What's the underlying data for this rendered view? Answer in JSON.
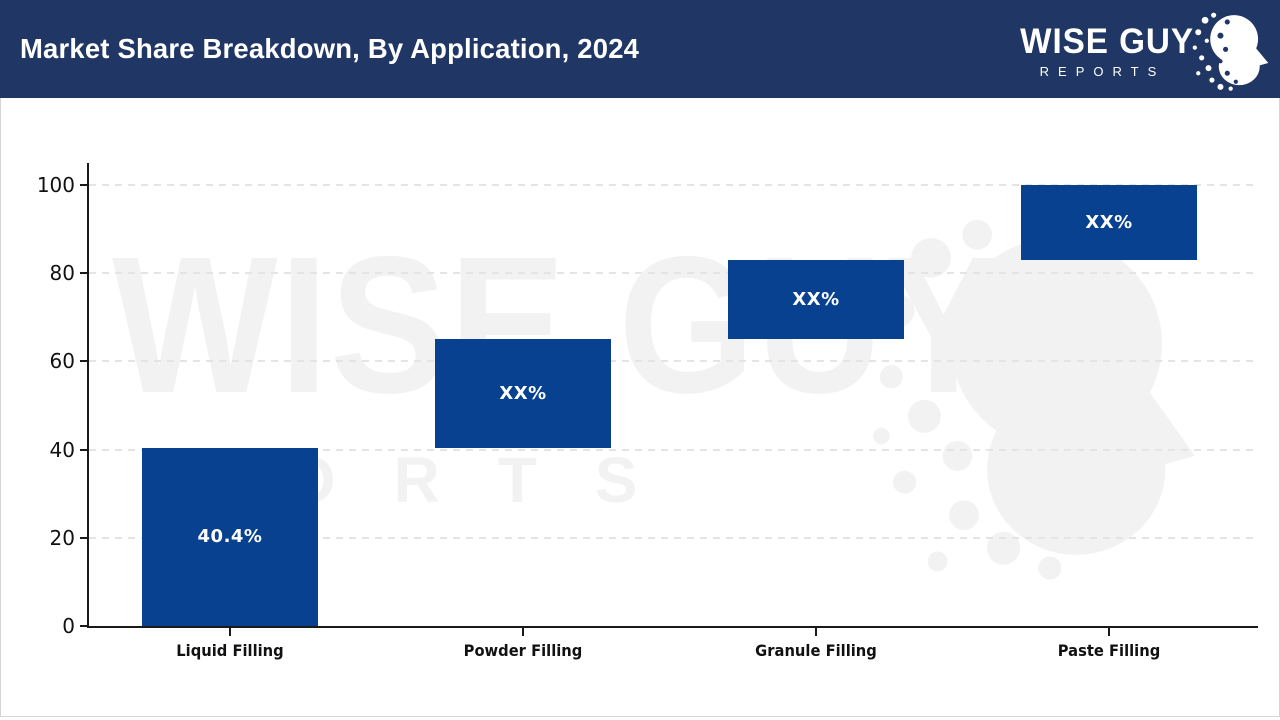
{
  "header": {
    "title": "Market Share Breakdown, By Application, 2024",
    "logo": {
      "line1": "WISE GUY",
      "line2": "REPORTS"
    }
  },
  "watermark": {
    "line1": "WISE GUY",
    "line2": "PORTS"
  },
  "chart_data": {
    "type": "bar",
    "subtype": "waterfall",
    "title": "Market Share Breakdown, By Application, 2024",
    "categories": [
      "Liquid Filling",
      "Powder Filling",
      "Granule Filling",
      "Paste Filling"
    ],
    "series": [
      {
        "name": "Market Share",
        "segments": [
          {
            "category": "Liquid Filling",
            "start": 0,
            "end": 40.4,
            "label": "40.4%"
          },
          {
            "category": "Powder Filling",
            "start": 40.4,
            "end": 65,
            "label": "XX%"
          },
          {
            "category": "Granule Filling",
            "start": 65,
            "end": 83,
            "label": "XX%"
          },
          {
            "category": "Paste Filling",
            "start": 83,
            "end": 100,
            "label": "XX%"
          }
        ]
      }
    ],
    "xlabel": "",
    "ylabel": "",
    "ylim": [
      0,
      100
    ],
    "yticks": [
      0,
      20,
      40,
      60,
      80,
      100
    ],
    "grid": "horizontal-dashed",
    "legend": "none",
    "bar_color": "#074190",
    "bar_label_color": "#ffffff",
    "header_color": "#203665"
  }
}
